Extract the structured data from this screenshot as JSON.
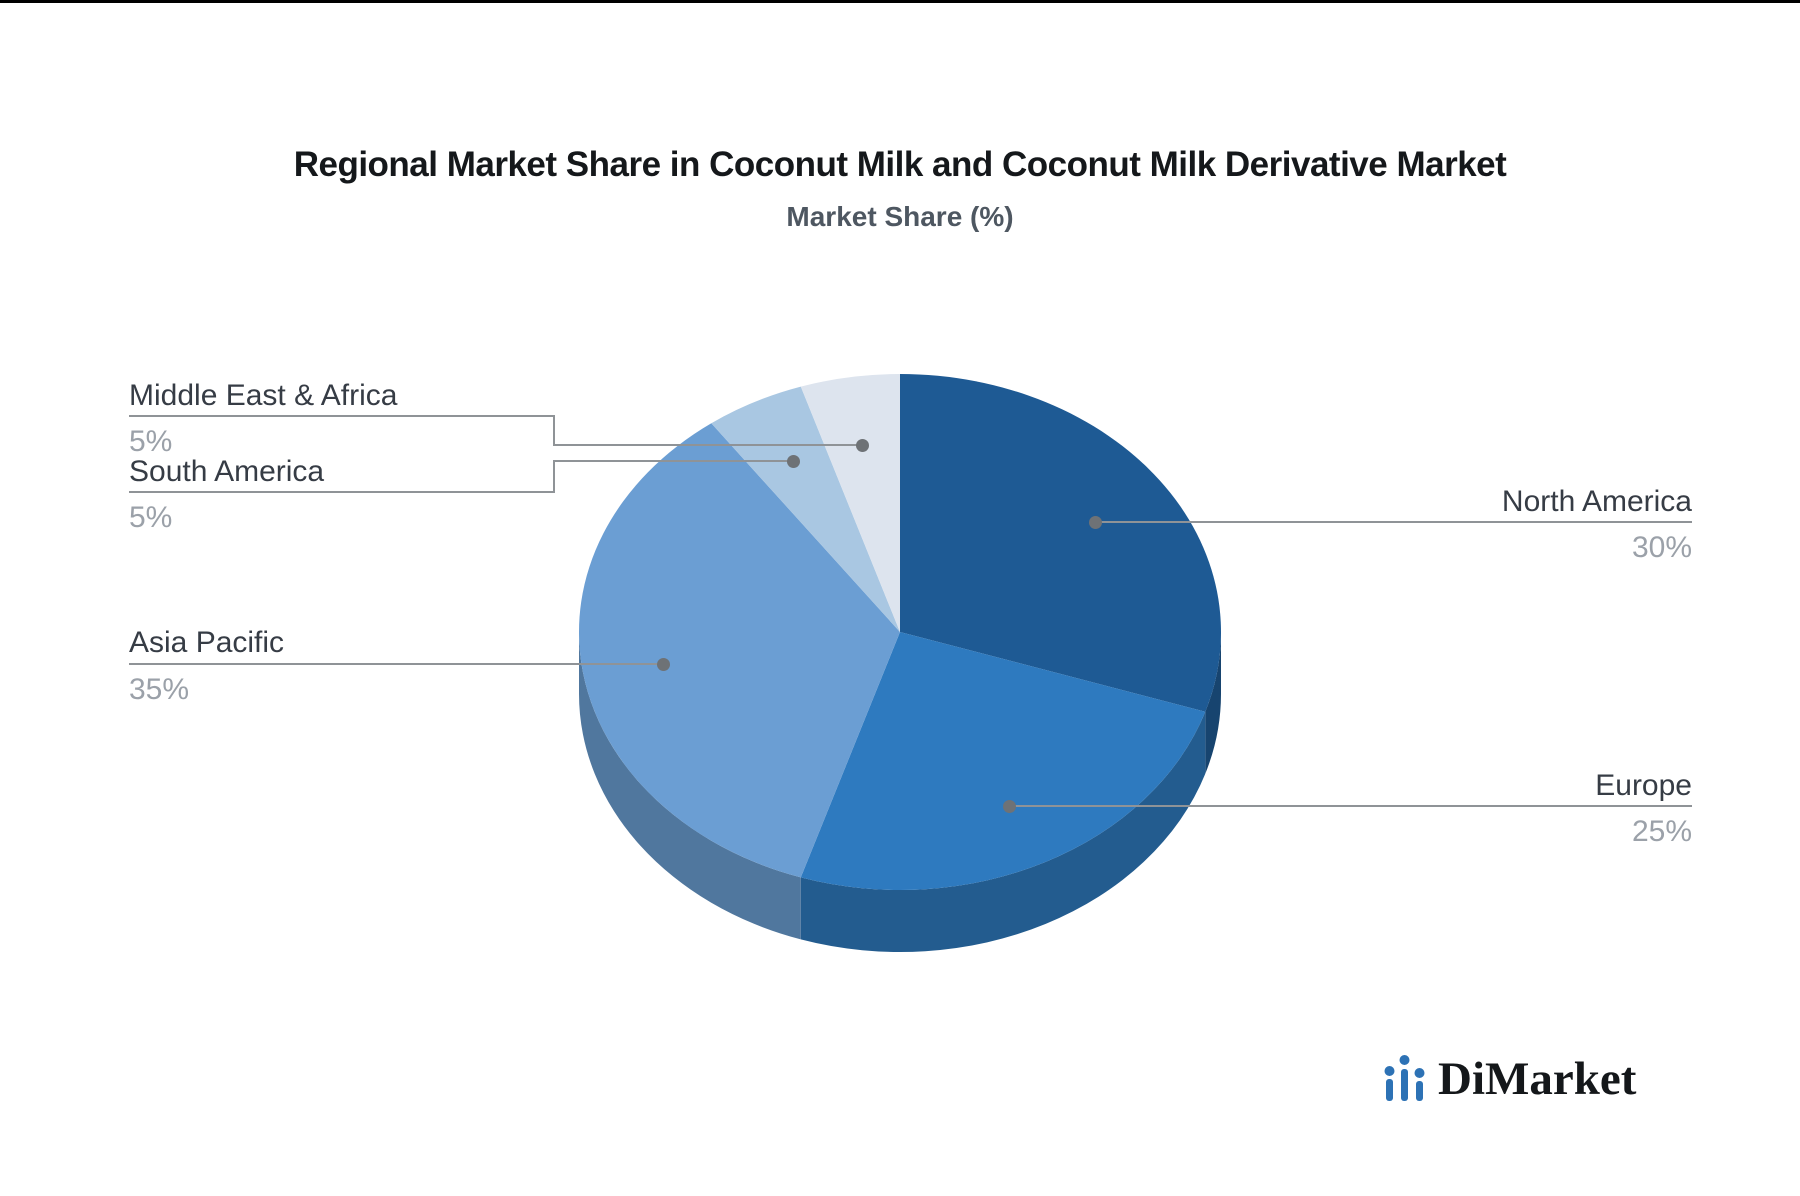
{
  "chart": {
    "title": "Regional Market Share in Coconut Milk and Coconut Milk Derivative Market",
    "subtitle": "Market Share (%)"
  },
  "chart_data": {
    "type": "pie",
    "three_d": true,
    "start_angle_deg": 0,
    "direction": "clockwise",
    "unit": "%",
    "legend_position": "none",
    "label_style": "callouts",
    "slices": [
      {
        "label": "North America",
        "value": 30,
        "value_text": "30%",
        "color": "#1E5A94",
        "callout_side": "right"
      },
      {
        "label": "Europe",
        "value": 25,
        "value_text": "25%",
        "color": "#2E7ABF",
        "callout_side": "right"
      },
      {
        "label": "Asia Pacific",
        "value": 35,
        "value_text": "35%",
        "color": "#6B9ED3",
        "callout_side": "left"
      },
      {
        "label": "South America",
        "value": 5,
        "value_text": "5%",
        "color": "#A9C7E2",
        "callout_side": "left"
      },
      {
        "label": "Middle East & Africa",
        "value": 5,
        "value_text": "5%",
        "color": "#DDE4EE",
        "callout_side": "left"
      }
    ]
  },
  "logo": {
    "text": "DiMarket",
    "icon": "bar-chart-dots-icon",
    "icon_color": "#2D72B5",
    "text_color": "#14171A"
  }
}
